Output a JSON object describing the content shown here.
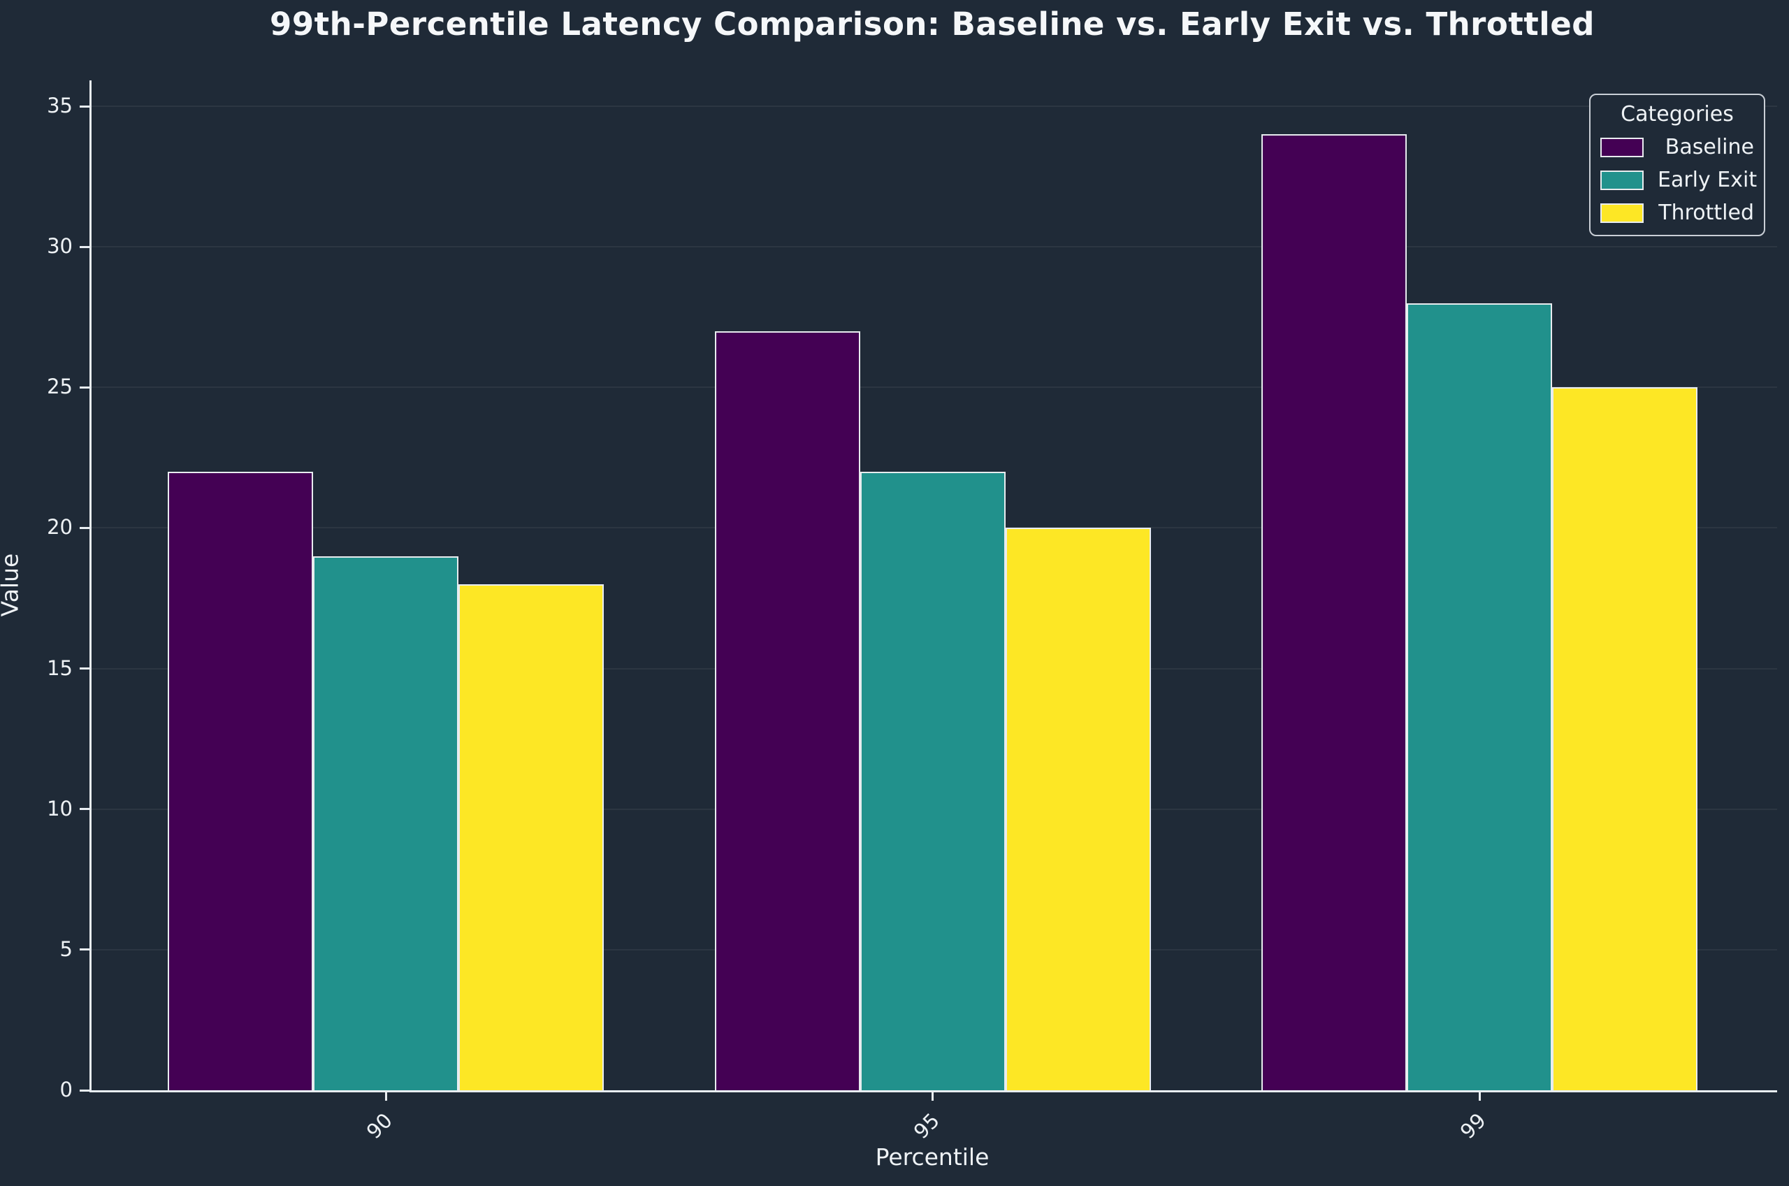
{
  "figure": {
    "background_color": "#1f2a37",
    "text_color": "#eef2f5",
    "axis_color": "#e8edf1"
  },
  "chart_data": {
    "type": "bar",
    "title": "99th-Percentile Latency Comparison: Baseline vs. Early Exit vs. Throttled",
    "xlabel": "Percentile",
    "ylabel": "Value",
    "categories": [
      "90",
      "95",
      "99"
    ],
    "series": [
      {
        "name": "Baseline",
        "color": "#440154",
        "values": [
          22,
          27,
          34
        ]
      },
      {
        "name": "Early Exit",
        "color": "#21918c",
        "values": [
          19,
          22,
          28
        ]
      },
      {
        "name": "Throttled",
        "color": "#fde725",
        "values": [
          18,
          20,
          25
        ]
      }
    ],
    "ylim": [
      0,
      35
    ],
    "yticks": [
      0,
      5,
      10,
      15,
      20,
      25,
      30,
      35
    ],
    "grid": true,
    "xtick_rotation_deg": 45,
    "legend": {
      "title": "Categories",
      "position": "upper right"
    }
  }
}
